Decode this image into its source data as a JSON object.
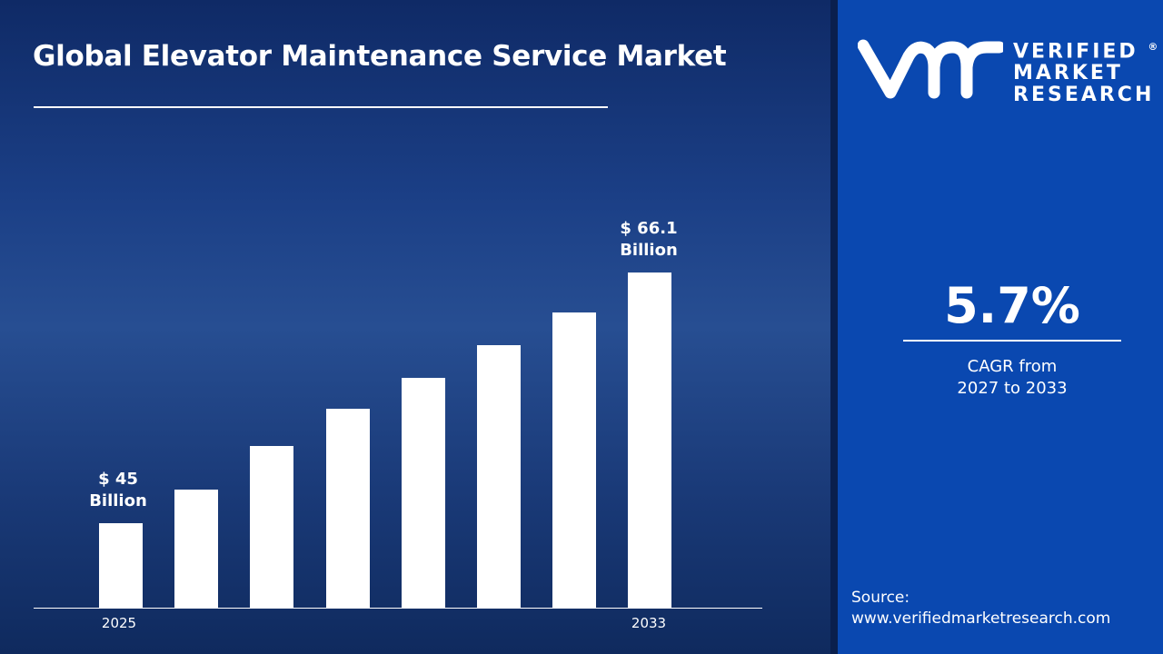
{
  "title": "Global Elevator Maintenance Service Market",
  "brand": {
    "line1": "VERIFIED",
    "line2": "MARKET",
    "line3": "RESEARCH",
    "mark": "®"
  },
  "cagr": {
    "value": "5.7%",
    "label1": "CAGR from",
    "label2": "2027 to 2033"
  },
  "source": {
    "label": "Source:",
    "url": "www.verifiedmarketresearch.com"
  },
  "colors": {
    "bar": "#ffffff",
    "panel": "#0a48b0",
    "background": "#1b3f86"
  },
  "chart_data": {
    "type": "bar",
    "categories": [
      "2025",
      "",
      "",
      "",
      "",
      "",
      "",
      "2033"
    ],
    "values": [
      45,
      47.8,
      51.5,
      54.6,
      57.2,
      60.0,
      62.7,
      66.1
    ],
    "data_labels": [
      {
        "index": 0,
        "line1": "$ 45",
        "line2": "Billion"
      },
      {
        "index": 7,
        "line1": "$ 66.1",
        "line2": "Billion"
      }
    ],
    "xlabel": "",
    "ylabel": "",
    "unit": "USD Billion",
    "grid": false
  }
}
